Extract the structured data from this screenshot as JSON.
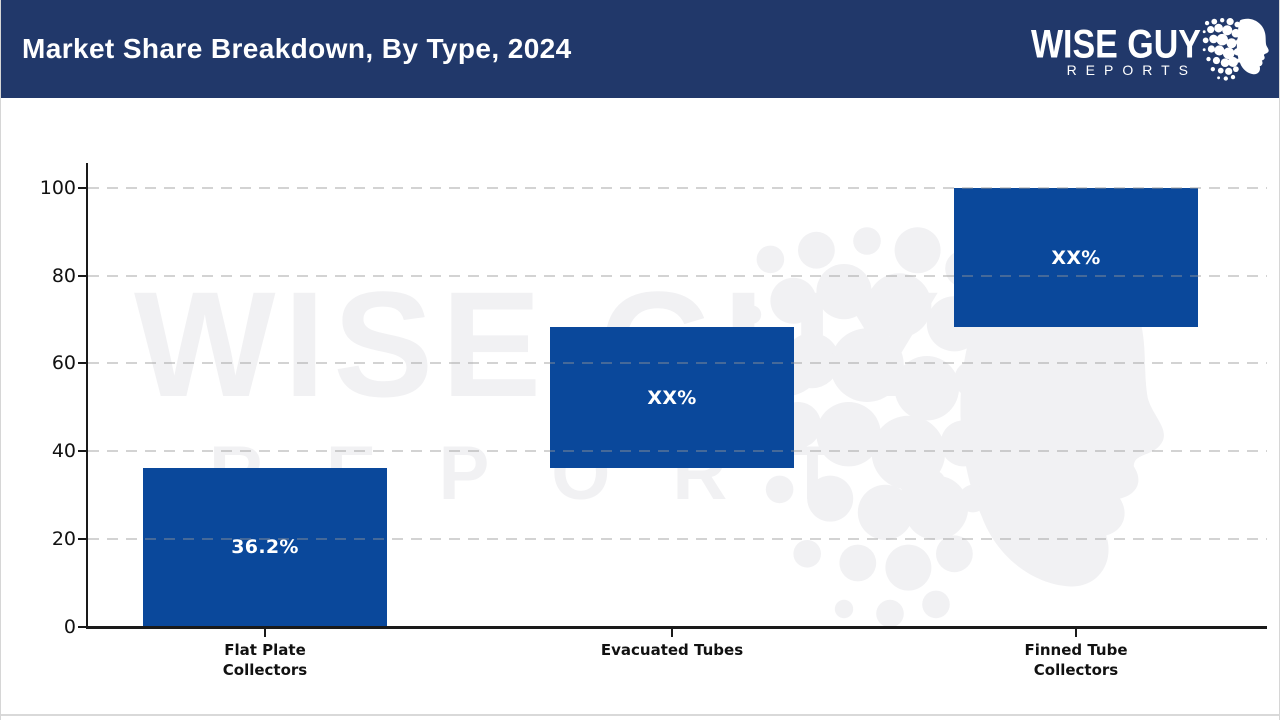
{
  "header": {
    "title": "Market Share Breakdown, By Type, 2024",
    "logo": {
      "word": "WISE GUY",
      "sub": "REPORTS"
    }
  },
  "watermark": {
    "word": "WISE GUY",
    "sub": "REPORTS"
  },
  "colors": {
    "header_bg": "#21386a",
    "bar_blue": "#0a489b",
    "bar_label": "#ffffff",
    "watermark_gray": "#f1f1f3",
    "axis": "#1a1a1a",
    "grid_dash": "#c4c4c4",
    "title_text": "#ffffff"
  },
  "chart_data": {
    "type": "bar",
    "subtype": "waterfall",
    "title": "Market Share Breakdown, By Type, 2024",
    "unit": "%",
    "categories": [
      "Flat Plate Collectors",
      "Evacuated Tubes",
      "Finned Tube Collectors"
    ],
    "categories_lines": [
      [
        "Flat Plate",
        "Collectors"
      ],
      [
        "Evacuated Tubes"
      ],
      [
        "Finned Tube",
        "Collectors"
      ]
    ],
    "segments": [
      {
        "category": "Flat Plate Collectors",
        "start": 0,
        "end": 36.2,
        "value": 36.2,
        "label": "36.2%"
      },
      {
        "category": "Evacuated Tubes",
        "start": 36.2,
        "end": 68.2,
        "value": 32.0,
        "label": "XX%"
      },
      {
        "category": "Finned Tube Collectors",
        "start": 68.2,
        "end": 100,
        "value": 31.8,
        "label": "XX%"
      }
    ],
    "yticks": [
      0,
      20,
      40,
      60,
      80,
      100
    ],
    "ylim": [
      0,
      105
    ],
    "xlabel": "",
    "ylabel": "",
    "grid": "horizontal-dashed",
    "legend": "none"
  }
}
